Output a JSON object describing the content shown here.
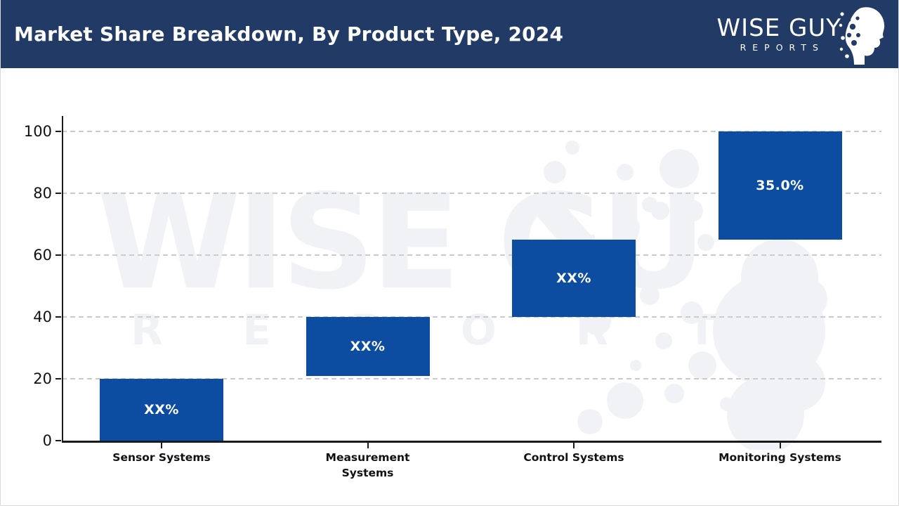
{
  "header": {
    "title": "Market Share Breakdown, By Product Type, 2024",
    "logo": {
      "brand_line1": "WISE GUY",
      "brand_line2": "REPORTS"
    }
  },
  "watermark": {
    "line1": "WISE GU",
    "line2": "R E P O R T S",
    "brand": "WISE GUY REPORTS"
  },
  "chart_data": {
    "type": "bar",
    "subtype": "waterfall",
    "title": "Market Share Breakdown, By Product Type, 2024",
    "categories": [
      "Sensor Systems",
      "Measurement Systems",
      "Control Systems",
      "Monitoring Systems"
    ],
    "bars": [
      {
        "category": "Sensor Systems",
        "label_lines": [
          "Sensor Systems"
        ],
        "start": 0,
        "end": 20,
        "label": "XX%"
      },
      {
        "category": "Measurement Systems",
        "label_lines": [
          "Measurement",
          "Systems"
        ],
        "start": 21,
        "end": 40,
        "label": "XX%"
      },
      {
        "category": "Control Systems",
        "label_lines": [
          "Control Systems"
        ],
        "start": 40,
        "end": 65,
        "label": "XX%"
      },
      {
        "category": "Monitoring Systems",
        "label_lines": [
          "Monitoring Systems"
        ],
        "start": 65,
        "end": 100,
        "label": "35.0%"
      }
    ],
    "yticks": [
      0,
      20,
      40,
      60,
      80,
      100
    ],
    "ylim": [
      0,
      100
    ],
    "grid": "dashed-horizontal",
    "legend": "none",
    "bar_color": "#0c4da2",
    "bar_label_color": "#ffffff"
  },
  "colors": {
    "header_bg": "#213a66",
    "bar": "#0c4da2",
    "axis": "#1a1a1a",
    "grid": "#cbcbcb",
    "watermark": "#f1f2f5",
    "title_text": "#ffffff"
  }
}
